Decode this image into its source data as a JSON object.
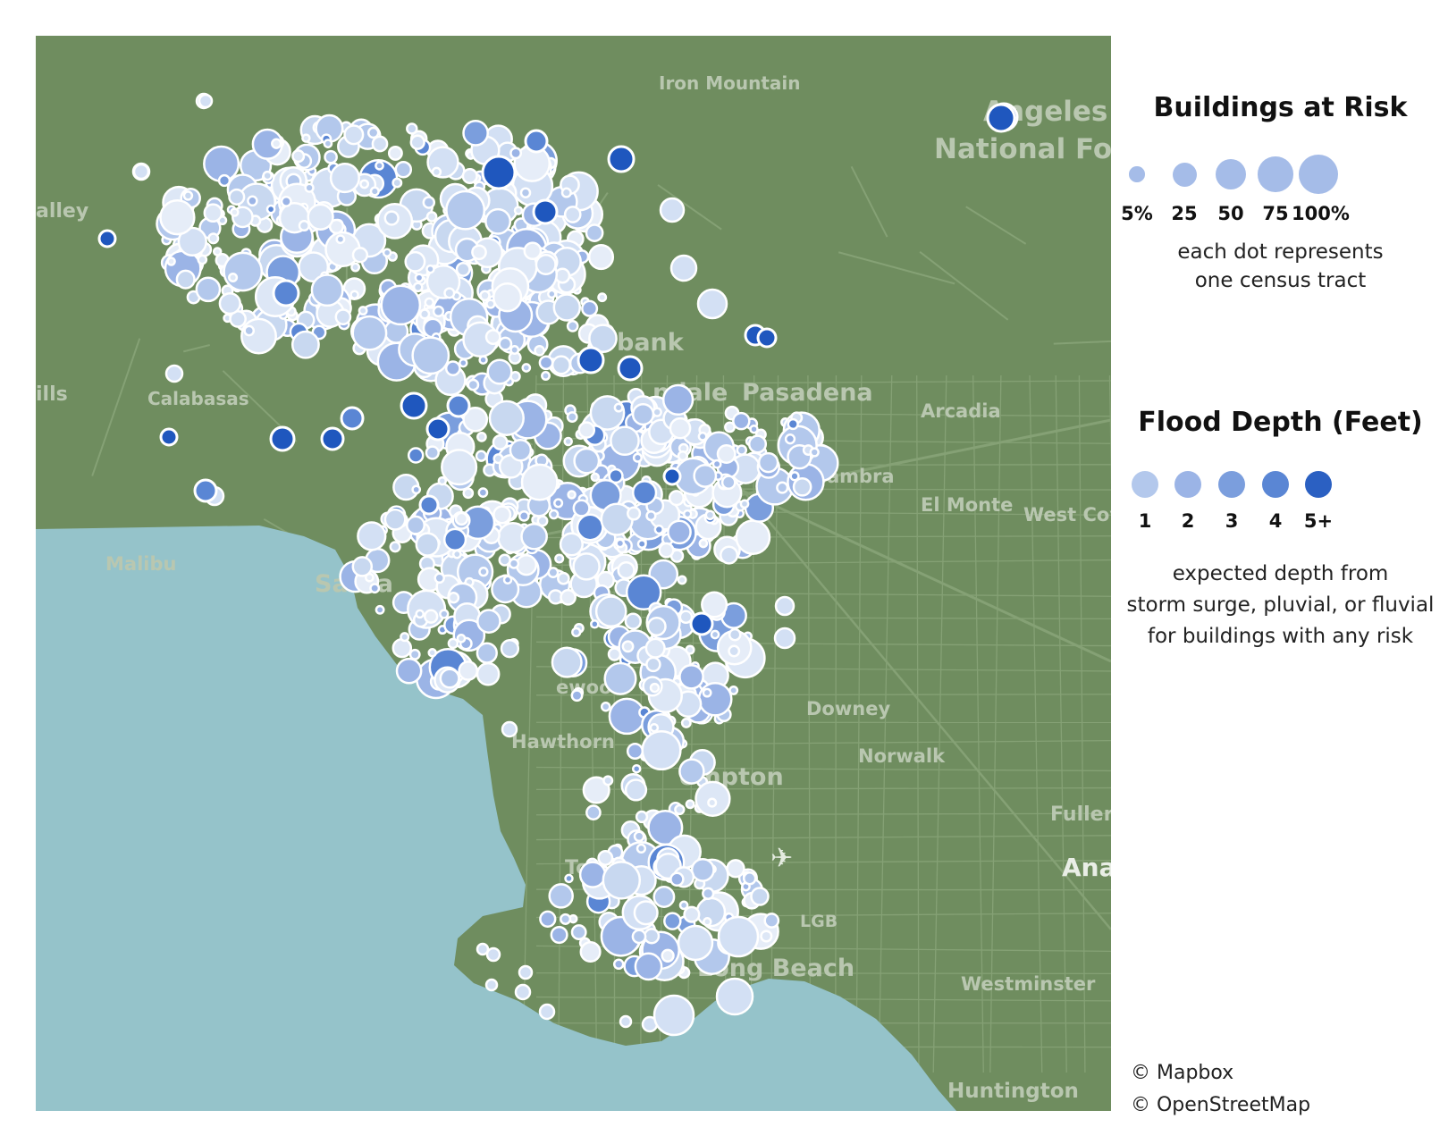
{
  "map": {
    "land_color": "#6f8d5f",
    "water_color": "#95c3ca",
    "road_color": "#8faa80",
    "places": [
      {
        "name": "Iron Mountain",
        "style": "small"
      },
      {
        "name": "Angeles",
        "style": "large"
      },
      {
        "name": "National Fore",
        "style": "large"
      },
      {
        "name": "alley",
        "style": "small"
      },
      {
        "name": "ills",
        "style": "small"
      },
      {
        "name": "Calabasas",
        "style": "small"
      },
      {
        "name": "bank",
        "style": "large"
      },
      {
        "name": "ndale",
        "style": "large"
      },
      {
        "name": "Pasadena",
        "style": "large"
      },
      {
        "name": "Arcadia",
        "style": "small"
      },
      {
        "name": "hambra",
        "style": "small"
      },
      {
        "name": "El Monte",
        "style": "small"
      },
      {
        "name": "West Cov",
        "style": "small"
      },
      {
        "name": "Malibu",
        "style": "small"
      },
      {
        "name": "Santa",
        "style": "large"
      },
      {
        "name": "ewood",
        "style": "small"
      },
      {
        "name": "Downey",
        "style": "small"
      },
      {
        "name": "Hawthorn",
        "style": "small"
      },
      {
        "name": "Norwalk",
        "style": "small"
      },
      {
        "name": "ompton",
        "style": "large"
      },
      {
        "name": "Fuller",
        "style": "small"
      },
      {
        "name": "Tor",
        "style": "small"
      },
      {
        "name": "Ana",
        "style": "white"
      },
      {
        "name": "LGB",
        "style": "small"
      },
      {
        "name": "Long Beach",
        "style": "large"
      },
      {
        "name": "Westminster",
        "style": "small"
      },
      {
        "name": "Huntington",
        "style": "small"
      }
    ]
  },
  "legend": {
    "size_title": "Buildings at Risk",
    "size_items": [
      {
        "label": "5%",
        "fraction": 0.05
      },
      {
        "label": "25",
        "fraction": 0.25
      },
      {
        "label": "50",
        "fraction": 0.5
      },
      {
        "label": "75",
        "fraction": 0.75
      },
      {
        "label": "100%",
        "fraction": 1.0
      }
    ],
    "size_note_line1": "each dot represents",
    "size_note_line2": "one census tract",
    "depth_title": "Flood Depth (Feet)",
    "depth_items": [
      {
        "label": "1",
        "color": "#b3c8ec"
      },
      {
        "label": "2",
        "color": "#9bb4e6"
      },
      {
        "label": "3",
        "color": "#7b9edd"
      },
      {
        "label": "4",
        "color": "#5a86d4"
      },
      {
        "label": "5+",
        "color": "#2b60c2"
      }
    ],
    "depth_note_line1": "expected depth from",
    "depth_note_line2": "storm surge, pluvial, or fluvial",
    "depth_note_line3": "for buildings with any risk"
  },
  "credits": {
    "line1": "© Mapbox",
    "line2": "© OpenStreetMap"
  }
}
